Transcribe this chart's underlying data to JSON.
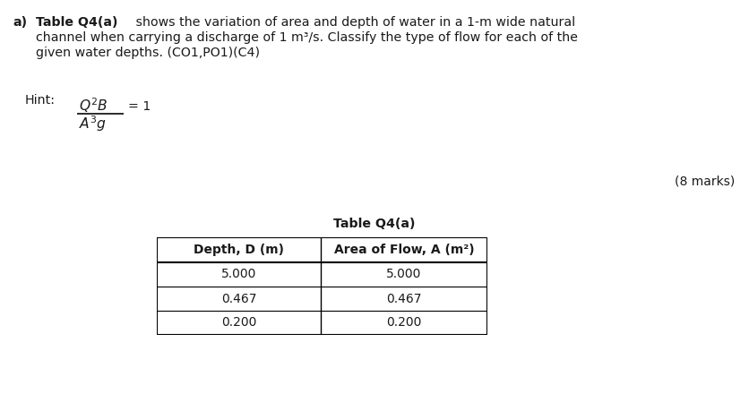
{
  "marks": "(8 marks)",
  "table_title": "Table Q4(a)",
  "col_headers": [
    "Depth, D (m)",
    "Area of Flow, A (m²)"
  ],
  "table_data": [
    [
      "5.000",
      "5.000"
    ],
    [
      "0.467",
      "0.467"
    ],
    [
      "0.200",
      "0.200"
    ]
  ],
  "bg_color": "#ffffff",
  "text_color": "#1a1a1a",
  "font_size_body": 10.2,
  "font_size_table": 10.0,
  "font_size_marks": 10.0,
  "line1_bold_a": "a)",
  "line1_bold_table": "Table Q4(a)",
  "line1_rest": " shows the variation of area and depth of water in a 1-m wide natural",
  "line2": "channel when carrying a discharge of 1 m³/s. Classify the type of flow for each of the",
  "line3": "given water depths. (CO1,PO1)(C4)"
}
